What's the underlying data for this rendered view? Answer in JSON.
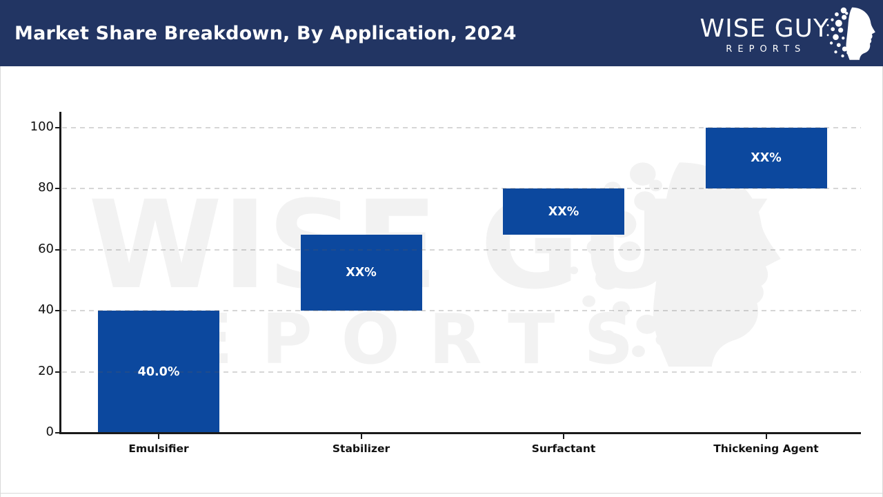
{
  "header": {
    "title": "Market Share Breakdown, By Application, 2024",
    "bg_color": "#223563",
    "logo": {
      "line1": "WISE GUY",
      "line2": "REPORTS"
    }
  },
  "watermark": {
    "line1": "WISE GUY",
    "line2": "REPORTS"
  },
  "chart_data": {
    "type": "bar",
    "subtype": "waterfall",
    "title": "Market Share Breakdown, By Application, 2024",
    "categories": [
      "Emulsifier",
      "Stabilizer",
      "Surfactant",
      "Thickening Agent"
    ],
    "segments": [
      {
        "category": "Emulsifier",
        "start": 0,
        "end": 40,
        "label": "40.0%"
      },
      {
        "category": "Stabilizer",
        "start": 40,
        "end": 65,
        "label": "XX%"
      },
      {
        "category": "Surfactant",
        "start": 65,
        "end": 80,
        "label": "XX%"
      },
      {
        "category": "Thickening Agent",
        "start": 80,
        "end": 100,
        "label": "XX%"
      }
    ],
    "yticks": [
      "0",
      "20",
      "40",
      "60",
      "80",
      "100"
    ],
    "ylim": [
      0,
      105
    ],
    "grid": "horizontal-dashed",
    "legend": "none",
    "bar_color": "#0c489e",
    "bar_label_color": "#ffffff",
    "axis_color": "#1a1a1a"
  }
}
